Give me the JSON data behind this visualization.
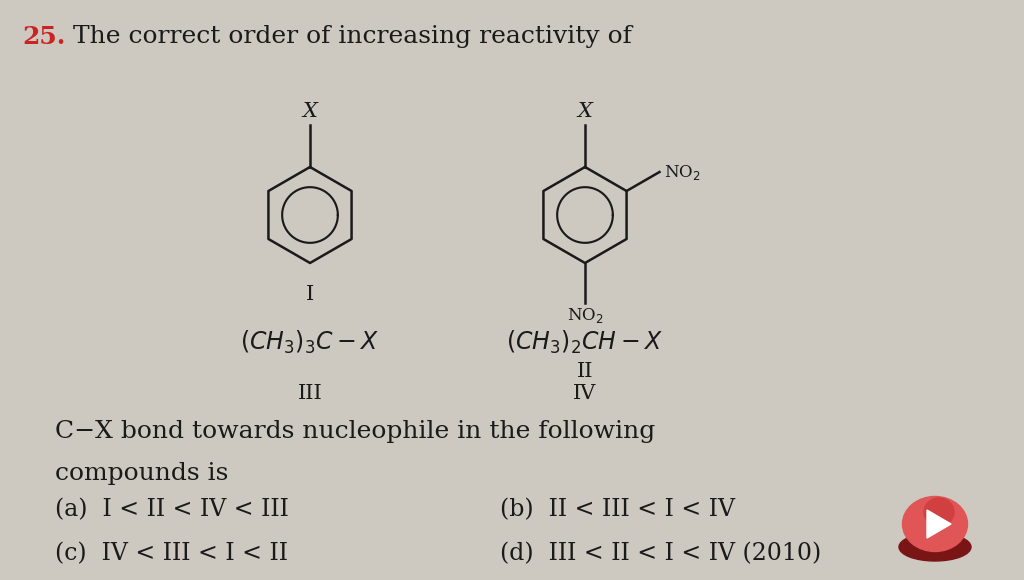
{
  "background_color": "#cdc8c0",
  "question_number": "25.",
  "title_text": " The correct order of increasing reactivity of",
  "body_line1": "C−X bond towards nucleophile in the following",
  "body_line2": "compounds is",
  "options": [
    "(a)  I < II < IV < III",
    "(b)  II < III < I < IV",
    "(c)  IV < III < I < II",
    "(d)  III < II < I < IV (2010)"
  ],
  "font_size_title": 18,
  "font_size_body": 18,
  "font_size_options": 17,
  "font_size_labels": 15,
  "font_size_chem": 16,
  "text_color": "#1a1a1a",
  "number_color": "#cc2222",
  "ring_color": "#1a1a1a",
  "icon_outer_color": "#7a1515",
  "icon_inner_color": "#e05555",
  "icon_accent": "#c84040"
}
